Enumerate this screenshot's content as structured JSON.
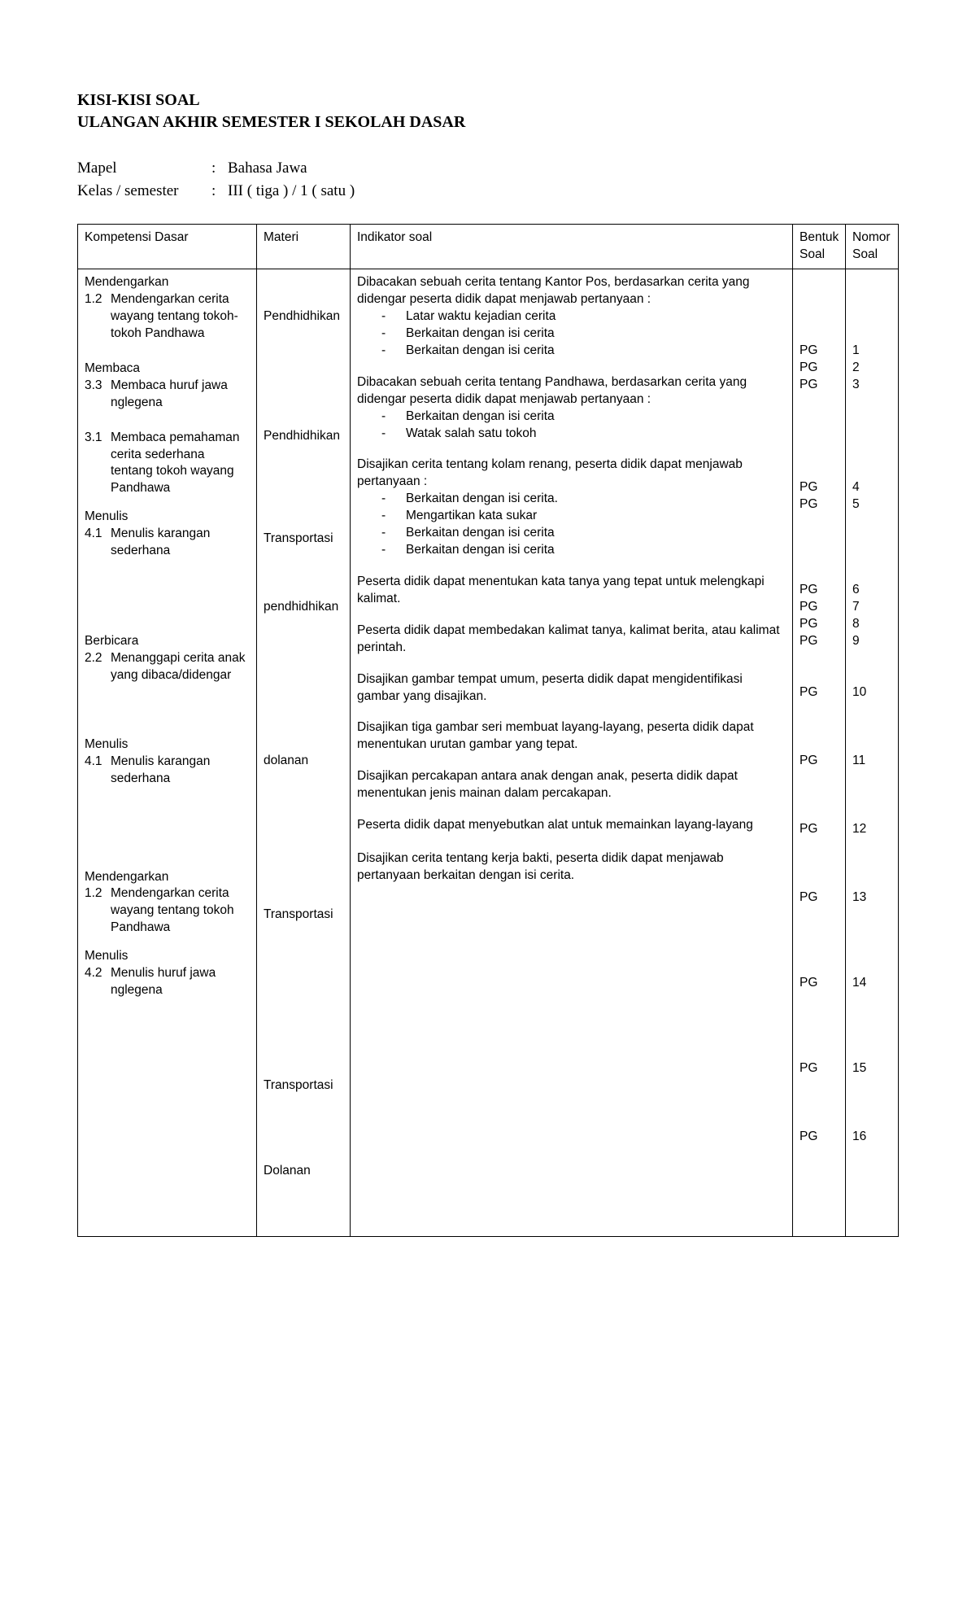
{
  "title": {
    "line1": "KISI-KISI SOAL",
    "line2": "ULANGAN AKHIR SEMESTER I SEKOLAH DASAR"
  },
  "meta": {
    "mapel_label": "Mapel",
    "mapel_value": "Bahasa Jawa",
    "kelas_label": "Kelas / semester",
    "kelas_value": "III ( tiga ) / 1 ( satu )"
  },
  "table": {
    "headers": {
      "kd": "Kompetensi Dasar",
      "materi": "Materi",
      "indikator": "Indikator soal",
      "bentuk": "Bentuk Soal",
      "nomor": "Nomor Soal"
    },
    "kd_sections": [
      {
        "heading": "Mendengarkan",
        "items": [
          {
            "num": "1.2",
            "text": "Mendengarkan cerita wayang tentang tokoh-tokoh Pandhawa"
          }
        ]
      },
      {
        "heading": "Membaca",
        "items": [
          {
            "num": "3.3",
            "text": "Membaca huruf jawa nglegena"
          }
        ]
      },
      {
        "heading": "",
        "items": [
          {
            "num": "3.1",
            "text": "Membaca pemahaman cerita sederhana tentang tokoh wayang Pandhawa"
          }
        ]
      },
      {
        "heading": "Menulis",
        "items": [
          {
            "num": "4.1",
            "text": "Menulis karangan sederhana"
          }
        ]
      },
      {
        "heading": "Berbicara",
        "items": [
          {
            "num": "2.2",
            "text": "Menanggapi cerita anak yang dibaca/didengar"
          }
        ]
      },
      {
        "heading": "Menulis",
        "items": [
          {
            "num": "4.1",
            "text": "Menulis karangan sederhana"
          }
        ]
      },
      {
        "heading": "Mendengarkan",
        "items": [
          {
            "num": "1.2",
            "text": "Mendengarkan cerita wayang tentang tokoh Pandhawa"
          }
        ]
      },
      {
        "heading": "Menulis",
        "items": [
          {
            "num": "4.2",
            "text": "Menulis huruf jawa nglegena"
          }
        ]
      }
    ],
    "materi_lines": [
      "",
      "",
      "Pendhidhikan",
      "",
      "",
      "",
      "",
      "",
      "",
      "Pendhidhikan",
      "",
      "",
      "",
      "",
      "",
      "Transportasi",
      "",
      "",
      "",
      "pendhidhikan",
      "",
      "",
      "",
      "",
      "",
      "",
      "",
      "",
      "dolanan",
      "",
      "",
      "",
      "",
      "",
      "",
      "",
      "",
      "Transportasi",
      "",
      "",
      "",
      "",
      "",
      "",
      "",
      "",
      "",
      "Transportasi",
      "",
      "",
      "",
      "",
      "Dolanan"
    ],
    "indikator_blocks": [
      {
        "intro": "Dibacakan sebuah cerita tentang Kantor Pos, berdasarkan cerita yang didengar peserta didik dapat menjawab pertanyaan :",
        "bullets": [
          "Latar waktu kejadian cerita",
          "Berkaitan dengan isi cerita",
          "Berkaitan dengan isi cerita"
        ]
      },
      {
        "intro": "Dibacakan sebuah cerita tentang Pandhawa, berdasarkan cerita yang didengar peserta didik dapat menjawab pertanyaan :",
        "bullets": [
          "Berkaitan dengan isi cerita",
          "Watak salah satu tokoh"
        ]
      },
      {
        "intro": "Disajikan cerita tentang kolam renang, peserta didik dapat menjawab pertanyaan :",
        "bullets": [
          "Berkaitan dengan isi cerita.",
          "Mengartikan kata sukar",
          "Berkaitan dengan isi cerita",
          "Berkaitan dengan isi cerita"
        ]
      },
      {
        "intro": "Peserta didik dapat menentukan kata tanya yang tepat untuk melengkapi kalimat.",
        "bullets": []
      },
      {
        "intro": "Peserta didik dapat membedakan kalimat tanya, kalimat berita, atau kalimat perintah.",
        "bullets": []
      },
      {
        "intro": "Disajikan gambar tempat umum, peserta didik dapat mengidentifikasi gambar yang disajikan.",
        "bullets": []
      },
      {
        "intro": "Disajikan tiga gambar seri membuat layang-layang, peserta didik dapat menentukan urutan gambar yang tepat.",
        "bullets": []
      },
      {
        "intro": "Disajikan percakapan antara anak dengan anak, peserta didik dapat menentukan jenis mainan dalam percakapan.",
        "bullets": []
      },
      {
        "intro": "Peserta didik dapat menyebutkan alat untuk memainkan layang-layang",
        "bullets": []
      },
      {
        "intro": "Disajikan cerita tentang kerja bakti, peserta didik dapat menjawab pertanyaan berkaitan dengan isi cerita.",
        "bullets": []
      }
    ],
    "bentuk_lines": [
      "",
      "",
      "",
      "",
      "PG",
      "PG",
      "PG",
      "",
      "",
      "",
      "",
      "",
      "PG",
      "PG",
      "",
      "",
      "",
      "",
      "PG",
      "PG",
      "PG",
      "PG",
      "",
      "",
      "PG",
      "",
      "",
      "",
      "PG",
      "",
      "",
      "",
      "PG",
      "",
      "",
      "",
      "PG",
      "",
      "",
      "",
      "",
      "PG",
      "",
      "",
      "",
      "",
      "PG",
      "",
      "",
      "",
      "PG",
      "",
      "",
      "",
      "",
      ""
    ],
    "nomor_lines": [
      "",
      "",
      "",
      "",
      "1",
      "2",
      "3",
      "",
      "",
      "",
      "",
      "",
      "4",
      "5",
      "",
      "",
      "",
      "",
      "6",
      "7",
      "8",
      "9",
      "",
      "",
      "10",
      "",
      "",
      "",
      "11",
      "",
      "",
      "",
      "12",
      "",
      "",
      "",
      "13",
      "",
      "",
      "",
      "",
      "14",
      "",
      "",
      "",
      "",
      "15",
      "",
      "",
      "",
      "16",
      "",
      "",
      "",
      "",
      ""
    ]
  }
}
